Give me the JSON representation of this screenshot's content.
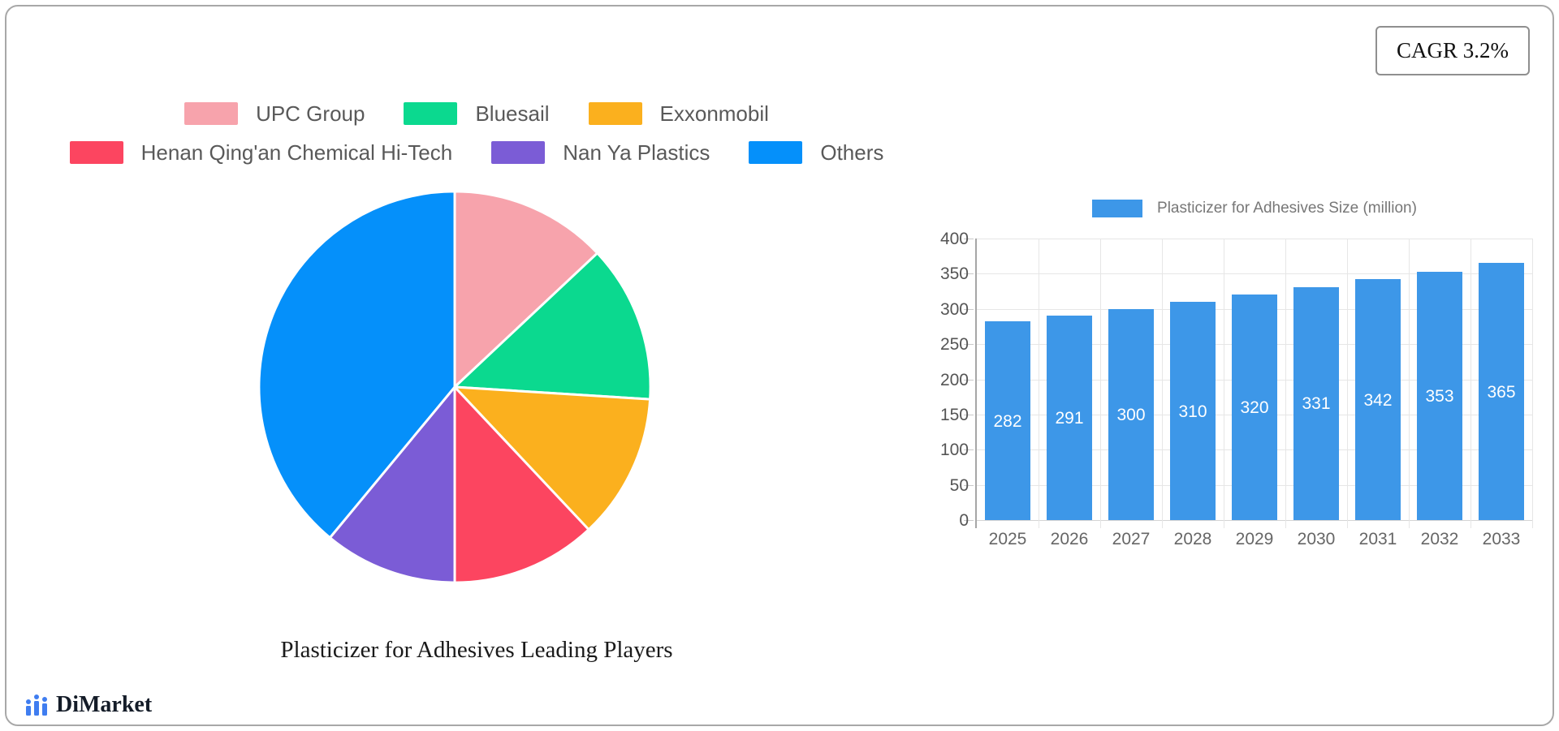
{
  "badge": {
    "label": "CAGR 3.2%"
  },
  "brand": {
    "name": "DiMarket",
    "icon_color": "#3f7df0",
    "text_color": "#141c28"
  },
  "chart_data": [
    {
      "type": "pie",
      "title": "Plasticizer for Adhesives Leading Players",
      "legend_position": "top",
      "legend_rows": [
        3,
        3
      ],
      "segments": [
        {
          "label": "UPC Group",
          "value": 13,
          "color": "#f7a3ac"
        },
        {
          "label": "Bluesail",
          "value": 13,
          "color": "#0bd98f"
        },
        {
          "label": "Exxonmobil",
          "value": 12,
          "color": "#fbb01e"
        },
        {
          "label": "Henan Qing'an Chemical Hi-Tech",
          "value": 12,
          "color": "#fc4560"
        },
        {
          "label": "Nan Ya Plastics",
          "value": 11,
          "color": "#7b5cd6"
        },
        {
          "label": "Others",
          "value": 39,
          "color": "#0590fa"
        }
      ]
    },
    {
      "type": "bar",
      "legend_label": "Plasticizer for Adhesives Size (million)",
      "bar_color": "#3d97e8",
      "categories": [
        "2025",
        "2026",
        "2027",
        "2028",
        "2029",
        "2030",
        "2031",
        "2032",
        "2033"
      ],
      "values": [
        282,
        291,
        300,
        310,
        320,
        331,
        342,
        353,
        365
      ],
      "ylim": [
        0,
        400
      ],
      "ytick_step": 50,
      "grid": true,
      "value_labels": "inside-center-white"
    }
  ]
}
